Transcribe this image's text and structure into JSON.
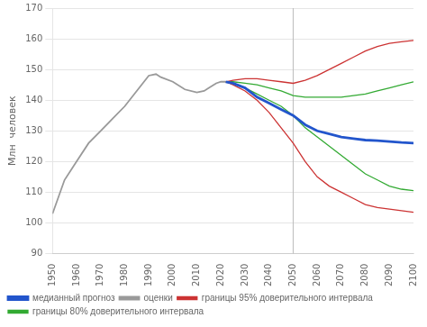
{
  "chart_data": {
    "type": "line",
    "ylabel": "Млн  человек",
    "xlim": [
      1950,
      2100
    ],
    "xticks": [
      1950,
      1960,
      1970,
      1980,
      1990,
      2000,
      2010,
      2020,
      2030,
      2040,
      2050,
      2060,
      2070,
      2080,
      2090,
      2100
    ],
    "ylim": [
      90,
      170
    ],
    "yticks": [
      90,
      100,
      110,
      120,
      130,
      140,
      150,
      160,
      170
    ],
    "grid": "y",
    "legend": "bottom",
    "vline": 2050,
    "series": [
      {
        "name": "оценки",
        "color": "#999999",
        "x": [
          1950,
          1955,
          1960,
          1965,
          1970,
          1975,
          1980,
          1985,
          1990,
          1993,
          1995,
          2000,
          2005,
          2010,
          2013,
          2015,
          2018,
          2020,
          2022
        ],
        "values": [
          103,
          114,
          120,
          126,
          130,
          134,
          138,
          143,
          148,
          148.5,
          147.5,
          146,
          143.5,
          142.5,
          143,
          144,
          145.5,
          146,
          146
        ]
      },
      {
        "name": "медианный прогноз",
        "color": "#2255cc",
        "x": [
          2022,
          2025,
          2030,
          2035,
          2040,
          2045,
          2050,
          2055,
          2060,
          2065,
          2070,
          2075,
          2080,
          2085,
          2090,
          2095,
          2100
        ],
        "values": [
          146,
          145.5,
          144,
          141,
          139,
          137,
          135,
          132,
          130,
          129,
          128,
          127.5,
          127,
          126.8,
          126.5,
          126.2,
          126
        ]
      },
      {
        "name": "границы 95% доверительного интервала",
        "color": "#cc3333",
        "x": [
          2022,
          2025,
          2030,
          2035,
          2040,
          2045,
          2050,
          2055,
          2060,
          2065,
          2070,
          2075,
          2080,
          2085,
          2090,
          2095,
          2100
        ],
        "upper": [
          146,
          146.5,
          147,
          147,
          146.5,
          146,
          145.5,
          146.5,
          148,
          150,
          152,
          154,
          156,
          157.5,
          158.5,
          159,
          159.5
        ],
        "lower": [
          146,
          145,
          143,
          140,
          136,
          131,
          126,
          120,
          115,
          112,
          110,
          108,
          106,
          105,
          104.5,
          104,
          103.5
        ]
      },
      {
        "name": "границы 80% доверительного интервала",
        "color": "#33aa33",
        "x": [
          2022,
          2025,
          2030,
          2035,
          2040,
          2045,
          2050,
          2055,
          2060,
          2065,
          2070,
          2075,
          2080,
          2085,
          2090,
          2095,
          2100
        ],
        "upper": [
          146,
          146,
          145.5,
          145,
          144,
          143,
          141.5,
          141,
          141,
          141,
          141,
          141.5,
          142,
          143,
          144,
          145,
          146
        ],
        "lower": [
          146,
          145.5,
          144,
          142,
          140,
          138,
          135,
          131,
          128,
          125,
          122,
          119,
          116,
          114,
          112,
          111,
          110.5
        ]
      }
    ]
  }
}
